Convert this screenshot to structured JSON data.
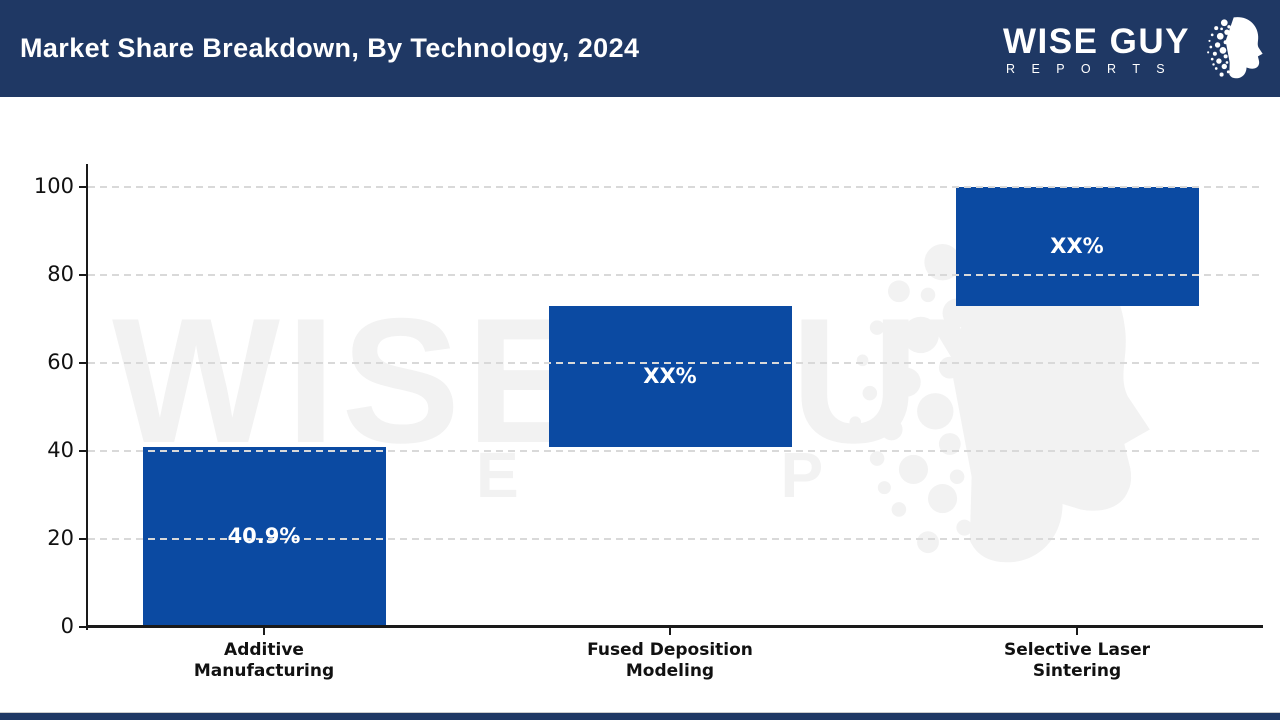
{
  "header": {
    "title": "Market Share Breakdown, By Technology, 2024",
    "logo": {
      "brand_line1": "WISE GUY",
      "brand_line2": "R E P O R T S"
    }
  },
  "watermark": {
    "line1": "WISE GUY",
    "line2": "R E P O R T S"
  },
  "chart_data": {
    "type": "bar",
    "variant": "waterfall-breakdown",
    "title": "Market Share Breakdown, By Technology, 2024",
    "categories": [
      "Additive Manufacturing",
      "Fused Deposition Modeling",
      "Selective Laser Sintering"
    ],
    "category_tick_lines": [
      [
        "Additive",
        "Manufacturing"
      ],
      [
        "Fused Deposition",
        "Modeling"
      ],
      [
        "Selective Laser",
        "Sintering"
      ]
    ],
    "segments": [
      {
        "category": "Additive Manufacturing",
        "start": 0,
        "end": 40.9,
        "label": "40.9%"
      },
      {
        "category": "Fused Deposition Modeling",
        "start": 40.9,
        "end": 72.9,
        "label": "XX%"
      },
      {
        "category": "Selective Laser Sintering",
        "start": 72.9,
        "end": 100,
        "label": "XX%"
      }
    ],
    "ylim": [
      0,
      100
    ],
    "yticks": [
      0,
      20,
      40,
      60,
      80,
      100
    ],
    "grid": {
      "horizontal": true,
      "style": "dashed"
    },
    "legend": "none",
    "bar_color": "#0B4AA2",
    "bar_label_color": "#FFFFFF"
  },
  "colors": {
    "header_bg": "#1F3864",
    "footer_bg": "#1F3864",
    "bar": "#0B4AA2",
    "axis": "#1a1a1a",
    "gridline": "#d9d9d9",
    "watermark": "#f2f2f2",
    "title_text": "#ffffff",
    "tick_text": "#111111"
  }
}
